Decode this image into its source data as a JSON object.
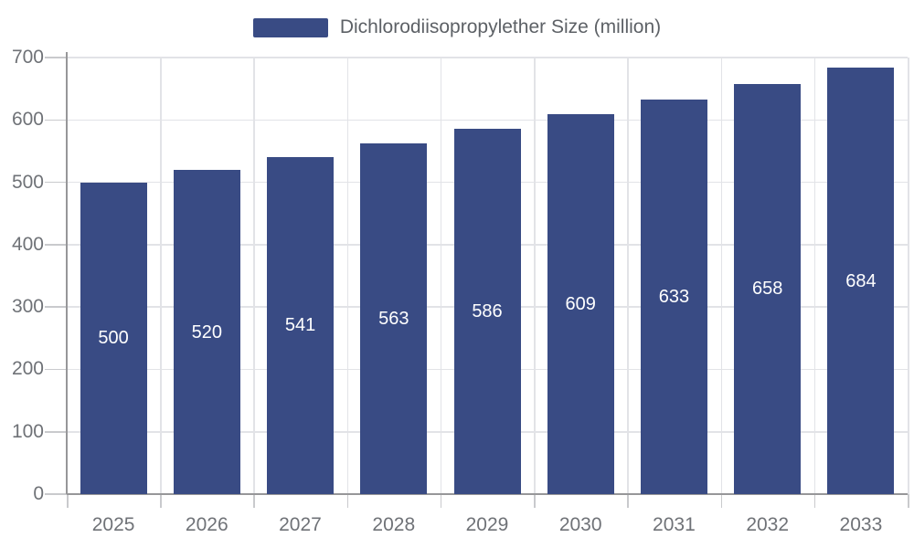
{
  "chart_data": {
    "type": "bar",
    "title": "",
    "categories": [
      "2025",
      "2026",
      "2027",
      "2028",
      "2029",
      "2030",
      "2031",
      "2032",
      "2033"
    ],
    "series": [
      {
        "name": "Dichlorodiisopropylether Size (million)",
        "values": [
          500,
          520,
          541,
          563,
          586,
          609,
          633,
          658,
          684
        ]
      }
    ],
    "ylim": [
      0,
      700
    ],
    "y_ticks": [
      0,
      100,
      200,
      300,
      400,
      500,
      600,
      700
    ],
    "grid": "horizontal-and-vertical",
    "legend_position": "top-center",
    "bar_label_position": "inside-center",
    "colors": {
      "bar": "#394b84",
      "bar_label": "#ffffff",
      "grid_line": "#e2e3e7",
      "axis_line": "#979799",
      "tick_mark": "#c9cacd",
      "tick_label": "#6f7277",
      "legend_text": "#5d6166",
      "background": "#ffffff"
    }
  }
}
